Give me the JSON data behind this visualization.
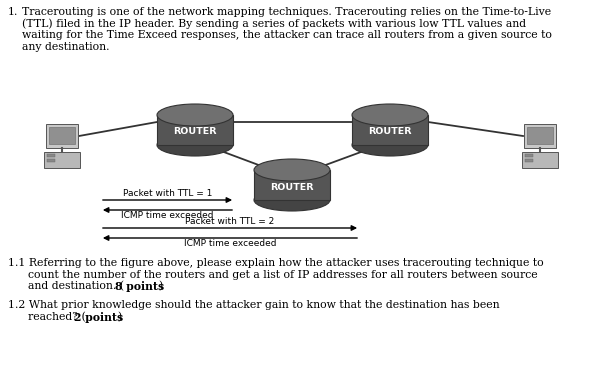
{
  "background_color": "#ffffff",
  "fig_width": 6.02,
  "fig_height": 3.68,
  "dpi": 100,
  "router_label": "ROUTER",
  "router_label_color": "#ffffff",
  "router_body_color": "#555555",
  "router_top_color": "#707070",
  "router_bot_color": "#444444",
  "router_edge_color": "#333333",
  "line_color": "#333333",
  "arrow_color": "#000000",
  "text_color": "#000000",
  "ttl1_label": "Packet with TTL = 1",
  "ttl1_back": "ICMP time exceeded",
  "ttl2_label": "Packet with TTL = 2",
  "ttl2_back": "ICMP time exceeded",
  "font_size_main": 7.8,
  "font_size_router": 6.8,
  "font_size_arrow": 6.5,
  "font_size_question": 7.8,
  "main_line1": "Tracerouting is one of the network mapping techniques. Tracerouting relies on the Time-to-Live",
  "main_line2": "(TTL) filed in the IP header. By sending a series of packets with various low TTL values and",
  "main_line3": "waiting for the Time Exceed responses, the attacker can trace all routers from a given source to",
  "main_line4": "any destination.",
  "q11_line1": "1.1 Referring to the figure above, please explain how the attacker uses tracerouting technique to",
  "q11_line2": "count the number of the routers and get a list of IP addresses for all routers between source",
  "q11_line3_a": "and destination. (",
  "q11_line3_b": "8 points",
  "q11_line3_c": ")",
  "q12_line1": "1.2 What prior knowledge should the attacker gain to know that the destination has been",
  "q12_line2_a": "reached? (",
  "q12_line2_b": "2 points",
  "q12_line2_c": ")"
}
